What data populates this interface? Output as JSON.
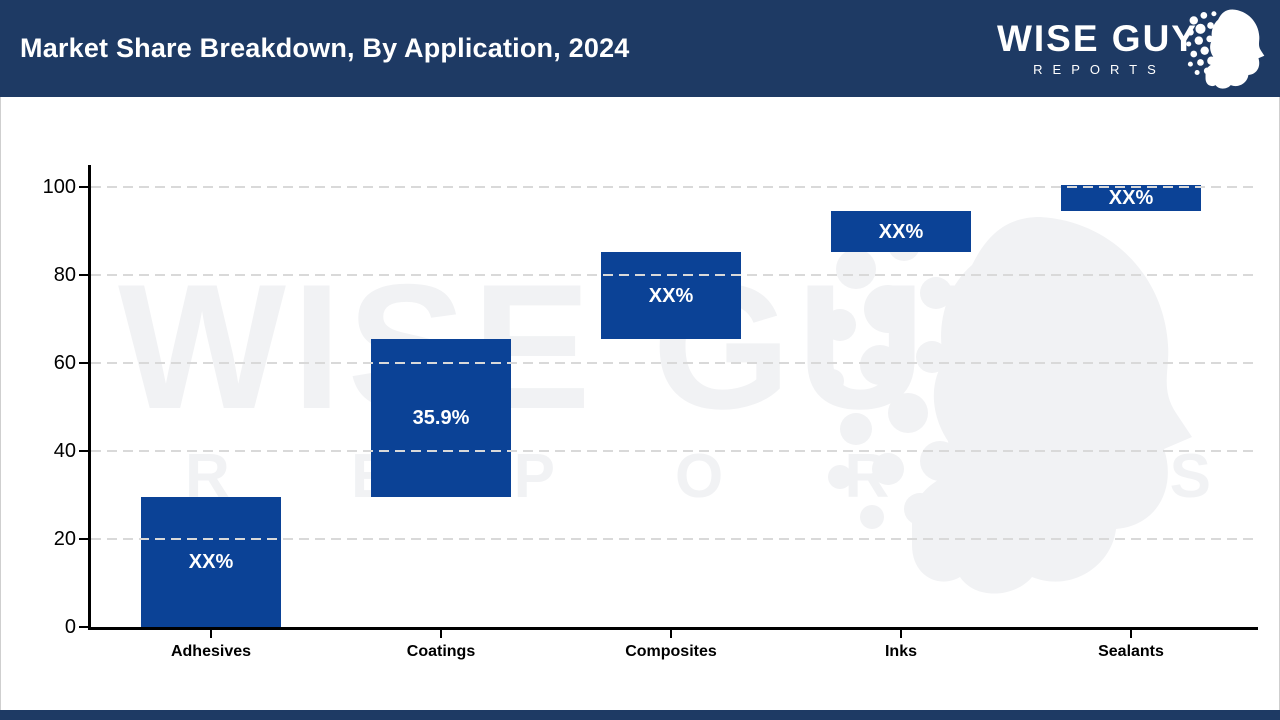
{
  "header": {
    "title": "Market Share Breakdown, By Application, 2024",
    "logo": {
      "line1": "WISE GUY",
      "line2": "REPORTS"
    }
  },
  "watermark": {
    "line1": "WISE GUY",
    "line2": "R E P O R T S"
  },
  "colors": {
    "header_bg": "#1e3a64",
    "bar": "#0b4296",
    "grid": "#d9d9d9",
    "axis": "#000000",
    "watermark": "#f1f2f4",
    "bar_label_text": "#ffffff",
    "title_text": "#ffffff"
  },
  "chart_data": {
    "type": "bar",
    "subtype": "waterfall",
    "title": "Market Share Breakdown, By Application, 2024",
    "categories": [
      "Adhesives",
      "Coatings",
      "Composites",
      "Inks",
      "Sealants"
    ],
    "segments": [
      {
        "category": "Adhesives",
        "start": 0,
        "end": 29.5,
        "label": "XX%"
      },
      {
        "category": "Coatings",
        "start": 29.5,
        "end": 65.4,
        "label": "35.9%"
      },
      {
        "category": "Composites",
        "start": 65.4,
        "end": 85.2,
        "label": "XX%"
      },
      {
        "category": "Inks",
        "start": 85.2,
        "end": 94.5,
        "label": "XX%"
      },
      {
        "category": "Sealants",
        "start": 94.5,
        "end": 100.4,
        "label": "XX%"
      }
    ],
    "yticks": [
      0,
      20,
      40,
      60,
      80,
      100
    ],
    "ylim": [
      0,
      105
    ],
    "xlabel": "",
    "ylabel": "",
    "grid": "horizontal-dashed",
    "legend": "none"
  }
}
